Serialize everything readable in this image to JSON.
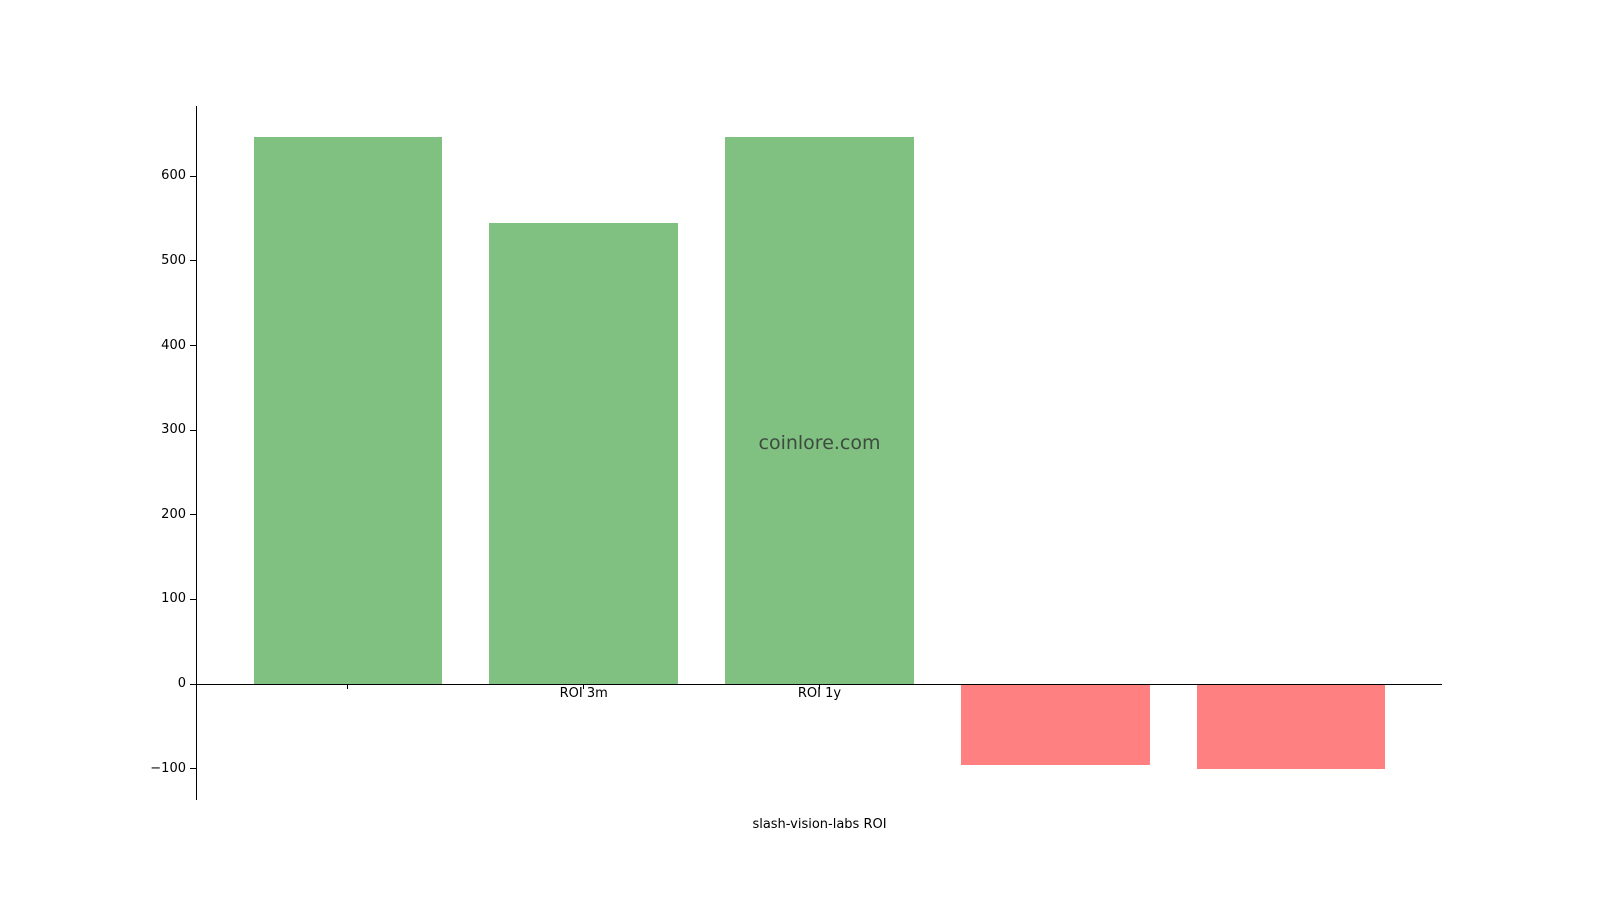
{
  "chart_data": {
    "type": "bar",
    "xlabel": "slash-vision-labs ROI",
    "watermark": "coinlore.com",
    "categories": [
      "",
      "ROI 3m",
      "ROI 1y",
      "",
      ""
    ],
    "values": [
      646,
      545,
      646,
      -96,
      -100
    ],
    "bar_colors": [
      "#80c080",
      "#80c080",
      "#80c080",
      "#ff8080",
      "#ff8080"
    ],
    "yticks": [
      600,
      500,
      400,
      300,
      200,
      100,
      0,
      -100
    ],
    "yticklabels": [
      "600",
      "500",
      "400",
      "300",
      "200",
      "100",
      "0",
      "−100"
    ],
    "ylim": [
      -137,
      683
    ],
    "grid": false,
    "legend_position": "none",
    "colors": {
      "positive_bar": "#80c080",
      "negative_bar": "#ff8080",
      "axis": "#000000",
      "tick_text": "#000000",
      "watermark_text": "#3d4b3e"
    }
  }
}
